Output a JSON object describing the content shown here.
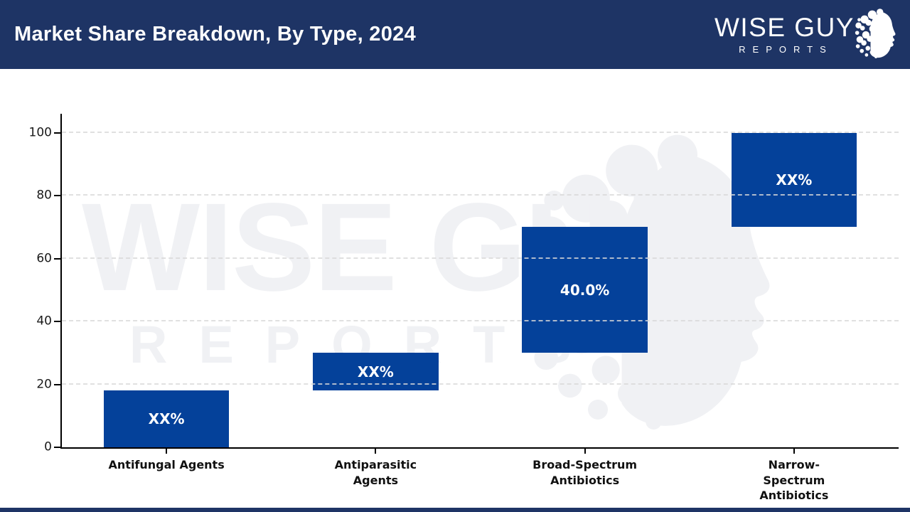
{
  "header": {
    "title": "Market Share Breakdown, By Type, 2024",
    "logo": {
      "line1": "WISE GUY",
      "line2": "REPORTS"
    }
  },
  "watermark": {
    "line1": "WISE GU",
    "line2": "REPORTS"
  },
  "colors": {
    "header_bg": "#1e3465",
    "bar": "#04419a",
    "grid": "#d9d9d9",
    "axis": "#000000",
    "text": "#111111",
    "bar_label": "#ffffff",
    "watermark": "#f0f1f4"
  },
  "chart_data": {
    "type": "bar",
    "subtype": "waterfall",
    "title": "Market Share Breakdown, By Type, 2024",
    "categories": [
      "Antifungal Agents",
      "Antiparasitic Agents",
      "Broad-Spectrum Antibiotics",
      "Narrow-Spectrum Antibiotics"
    ],
    "category_display": [
      "Antifungal Agents",
      "Antiparasitic\nAgents",
      "Broad-Spectrum\nAntibiotics",
      "Narrow-Spectrum\nAntibiotics"
    ],
    "segments": [
      {
        "category": "Antifungal Agents",
        "start": 0,
        "end": 18,
        "value": 18,
        "value_label": "XX%"
      },
      {
        "category": "Antiparasitic Agents",
        "start": 18,
        "end": 30,
        "value": 12,
        "value_label": "XX%"
      },
      {
        "category": "Broad-Spectrum Antibiotics",
        "start": 30,
        "end": 70,
        "value": 40,
        "value_label": "40.0%"
      },
      {
        "category": "Narrow-Spectrum Antibiotics",
        "start": 70,
        "end": 100,
        "value": 30,
        "value_label": "XX%"
      }
    ],
    "y_ticks": [
      0,
      20,
      40,
      60,
      80,
      100
    ],
    "ylim": [
      0,
      106
    ],
    "xlabel": "",
    "ylabel": "",
    "grid": "dashed-horizontal",
    "legend": false,
    "bar_width_fraction": 0.6
  }
}
